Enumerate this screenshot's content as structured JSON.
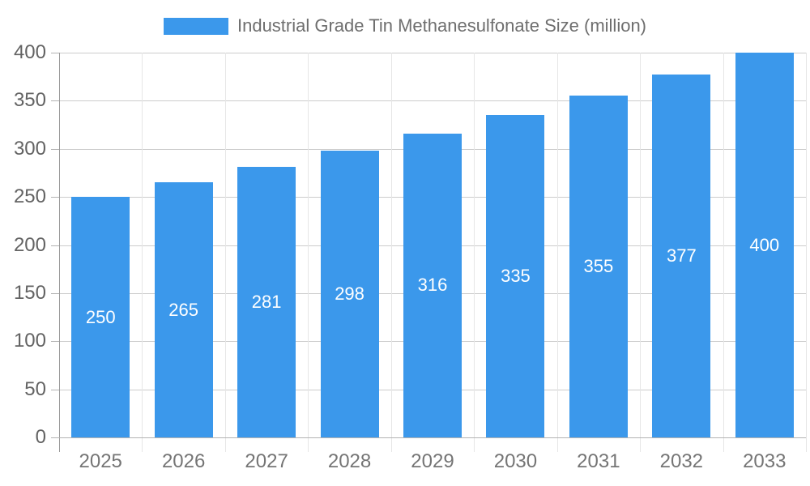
{
  "chart_data": {
    "type": "bar",
    "title": "Industrial Grade Tin Methanesulfonate Size (million)",
    "categories": [
      "2025",
      "2026",
      "2027",
      "2028",
      "2029",
      "2030",
      "2031",
      "2032",
      "2033"
    ],
    "values": [
      250,
      265,
      281,
      298,
      316,
      335,
      355,
      377,
      400
    ],
    "xlabel": "",
    "ylabel": "",
    "ylim": [
      0,
      400
    ],
    "ytick_step": 50,
    "yticks": [
      0,
      50,
      100,
      150,
      200,
      250,
      300,
      350,
      400
    ],
    "bar_color": "#3b98eb",
    "value_label_color": "#ffffff",
    "legend_position": "top",
    "grid": "on"
  }
}
